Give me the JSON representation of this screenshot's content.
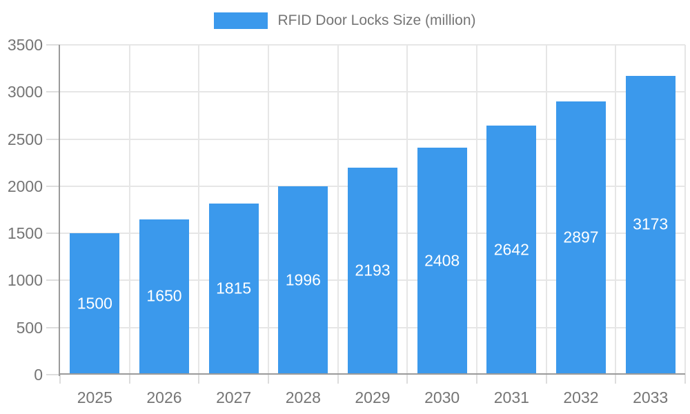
{
  "legend": {
    "label": "RFID Door Locks Size (million)"
  },
  "colors": {
    "bar": "#3b99ec",
    "bar_value_text": "#ffffff",
    "axis_line": "#9a9a9a",
    "gridline": "#e6e6e6",
    "tick": "#dddddd",
    "axis_text": "#757575",
    "background": "#ffffff"
  },
  "chart_data": {
    "type": "bar",
    "title": "",
    "xlabel": "",
    "ylabel": "",
    "categories": [
      "2025",
      "2026",
      "2027",
      "2028",
      "2029",
      "2030",
      "2031",
      "2032",
      "2033"
    ],
    "values": [
      1500,
      1650,
      1815,
      1996,
      2193,
      2408,
      2642,
      2897,
      3173
    ],
    "legend": [
      "RFID Door Locks Size (million)"
    ],
    "legend_position": "top-center",
    "ylim": [
      0,
      3500
    ],
    "ytick_step": 500,
    "yticks": [
      0,
      500,
      1000,
      1500,
      2000,
      2500,
      3000,
      3500
    ],
    "grid": true,
    "value_labels": "centered inside bars, white"
  }
}
